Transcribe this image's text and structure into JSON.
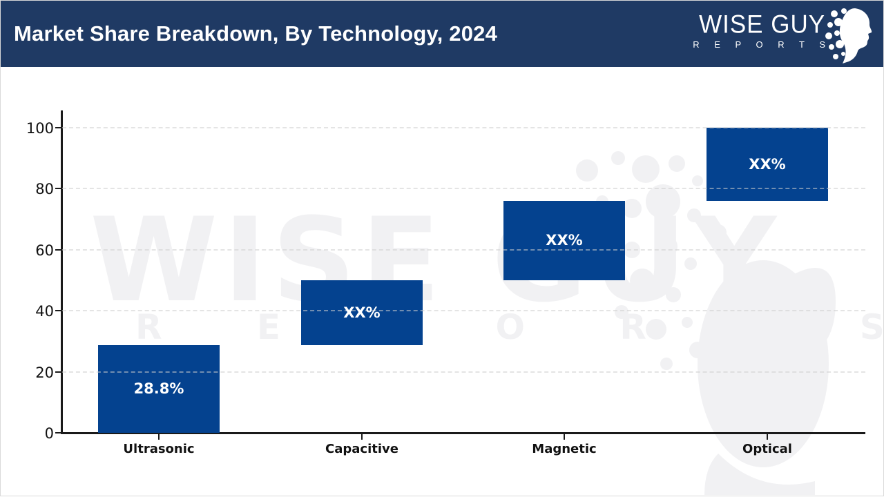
{
  "header": {
    "title": "Market Share Breakdown, By Technology, 2024",
    "logo_name": "WISE GUY",
    "logo_subtitle": "R E P O R T S",
    "background_color": "#1f3a64"
  },
  "watermark": {
    "line1": "WISE GUY",
    "line2": "R E P O R T S"
  },
  "chart_data": {
    "type": "bar",
    "subtype": "waterfall",
    "title": "Market Share Breakdown, By Technology, 2024",
    "categories": [
      "Ultrasonic",
      "Capacitive",
      "Magnetic",
      "Optical"
    ],
    "segments": [
      {
        "category": "Ultrasonic",
        "start": 0,
        "end": 28.8,
        "label": "28.8%"
      },
      {
        "category": "Capacitive",
        "start": 28.8,
        "end": 50,
        "label": "XX%"
      },
      {
        "category": "Magnetic",
        "start": 50,
        "end": 76,
        "label": "XX%"
      },
      {
        "category": "Optical",
        "start": 76,
        "end": 100,
        "label": "XX%"
      }
    ],
    "yticks": [
      0,
      20,
      40,
      60,
      80,
      100
    ],
    "ylim": [
      0,
      105
    ],
    "xlabel": "",
    "ylabel": "",
    "grid": "horizontal dashed",
    "legend": "none",
    "bar_color": "#04428f",
    "bar_label_color": "#ffffff",
    "axis_color": "#1a1a1a"
  }
}
